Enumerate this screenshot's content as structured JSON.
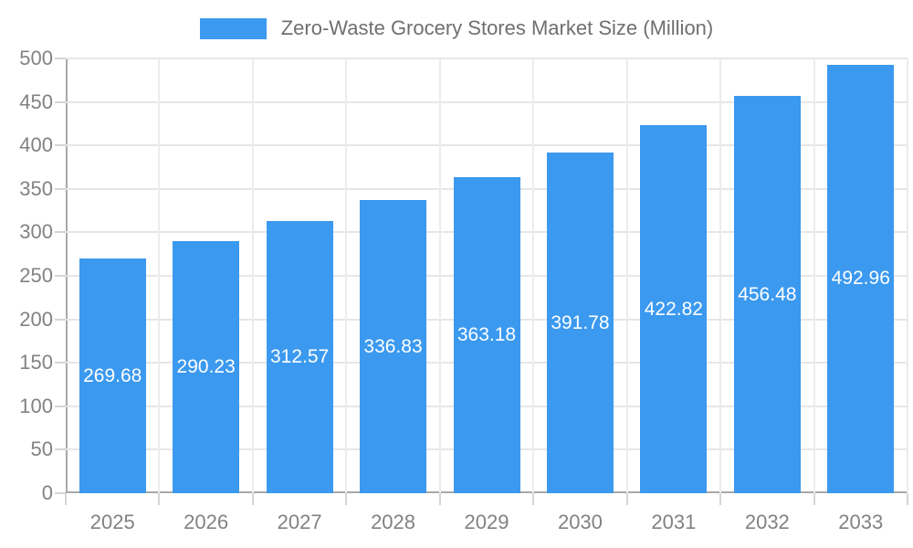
{
  "chart_data": {
    "type": "bar",
    "title": "Zero-Waste Grocery Stores Market Size (Million)",
    "categories": [
      "2025",
      "2026",
      "2027",
      "2028",
      "2029",
      "2030",
      "2031",
      "2032",
      "2033"
    ],
    "values": [
      269.68,
      290.23,
      312.57,
      336.83,
      363.18,
      391.78,
      422.82,
      456.48,
      492.96
    ],
    "value_labels": [
      "269.68",
      "290.23",
      "312.57",
      "336.83",
      "363.18",
      "391.78",
      "422.82",
      "456.48",
      "492.96"
    ],
    "xlabel": "",
    "ylabel": "",
    "ylim": [
      0,
      500
    ],
    "ytick_step": 50,
    "ytick_labels": [
      "0",
      "50",
      "100",
      "150",
      "200",
      "250",
      "300",
      "350",
      "400",
      "450",
      "500"
    ],
    "grid": true,
    "legend_position": "top",
    "value_label_position": "center-of-bar"
  },
  "colors": {
    "bar": "#3b99ef",
    "value_label": "#ffffff",
    "axis_line": "#a8a8a8",
    "gridline": "#e6e6e6",
    "tick": "#d5d5d5",
    "tick_label": "#828282",
    "legend_text": "#6f6f6f",
    "background": "#ffffff"
  }
}
